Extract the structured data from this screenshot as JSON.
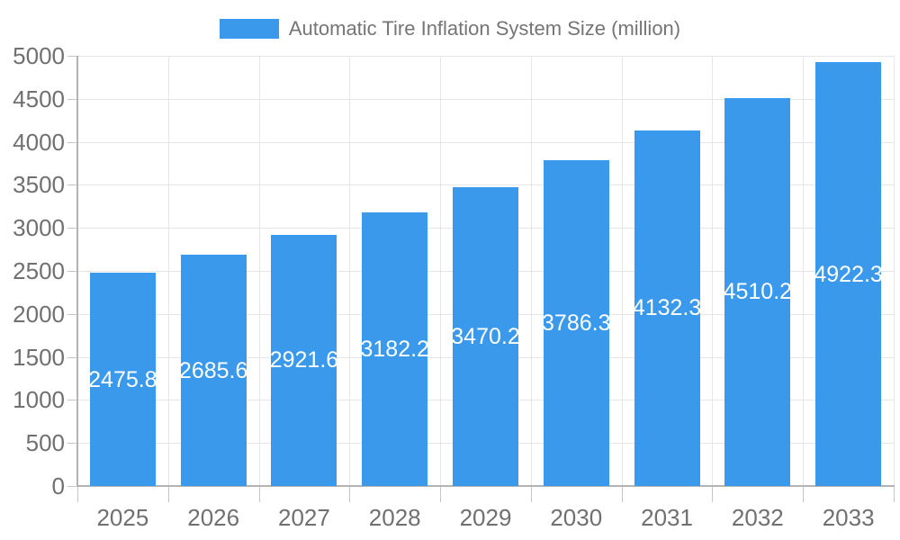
{
  "chart_data": {
    "type": "bar",
    "title": "",
    "legend": "Automatic Tire Inflation System Size (million)",
    "legend_position": "top-center",
    "categories": [
      "2025",
      "2026",
      "2027",
      "2028",
      "2029",
      "2030",
      "2031",
      "2032",
      "2033"
    ],
    "values": [
      2475.8,
      2685.6,
      2921.6,
      3182.2,
      3470.2,
      3786.3,
      4132.3,
      4510.2,
      4922.3
    ],
    "xlabel": "",
    "ylabel": "",
    "ylim": [
      0,
      5000
    ],
    "yticks": [
      0,
      500,
      1000,
      1500,
      2000,
      2500,
      3000,
      3500,
      4000,
      4500,
      5000
    ],
    "grid": true,
    "value_label_position": "inside-center",
    "colors": {
      "bar": "#3B99EC",
      "value_label": "#FFFFFF",
      "axis_label": "#707070",
      "legend_text": "#757575",
      "gridline": "#E6E6E6",
      "axis_line": "#B3B3B3",
      "tick": "#C6C6C6",
      "background": "#FFFFFF"
    }
  }
}
